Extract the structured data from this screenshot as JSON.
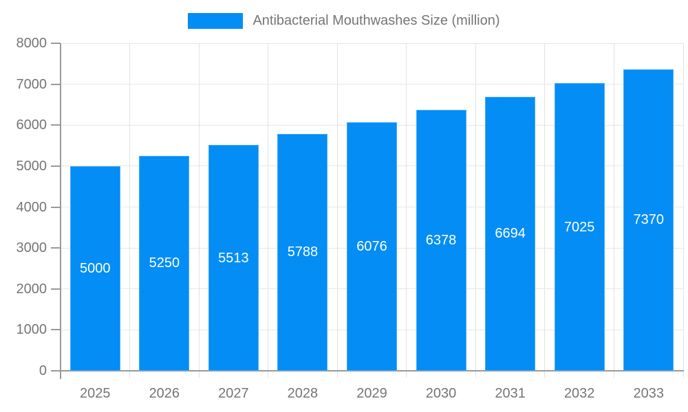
{
  "colors": {
    "bar": "#048df5",
    "grid": "#e6e6e6",
    "grid_vertical": "#e2e2e2",
    "axis": "#999999",
    "tick_text": "#757575",
    "value_label": "#ffffff",
    "background": "#ffffff"
  },
  "legend": {
    "label": "Antibacterial Mouthwashes Size (million)",
    "swatch_color": "#048df5"
  },
  "chart_data": {
    "type": "bar",
    "title": "Antibacterial Mouthwashes Size (million)",
    "legend": [
      "Antibacterial Mouthwashes Size (million)"
    ],
    "legend_position": "top-center",
    "categories": [
      "2025",
      "2026",
      "2027",
      "2028",
      "2029",
      "2030",
      "2031",
      "2032",
      "2033"
    ],
    "series": [
      {
        "name": "Antibacterial Mouthwashes Size (million)",
        "values": [
          5000,
          5250,
          5513,
          5788,
          6076,
          6378,
          6694,
          7025,
          7370
        ],
        "color": "#048df5",
        "data_labels": [
          "5000",
          "5250",
          "5513",
          "5788",
          "6076",
          "6378",
          "6694",
          "7025",
          "7370"
        ],
        "data_label_position": "inside-center",
        "data_label_color": "#ffffff"
      }
    ],
    "xlabel": "",
    "ylabel": "",
    "ylim": [
      0,
      8000
    ],
    "ytick_step": 1000,
    "yticks": [
      "0",
      "1000",
      "2000",
      "3000",
      "4000",
      "5000",
      "6000",
      "7000",
      "8000"
    ],
    "grid": true
  }
}
